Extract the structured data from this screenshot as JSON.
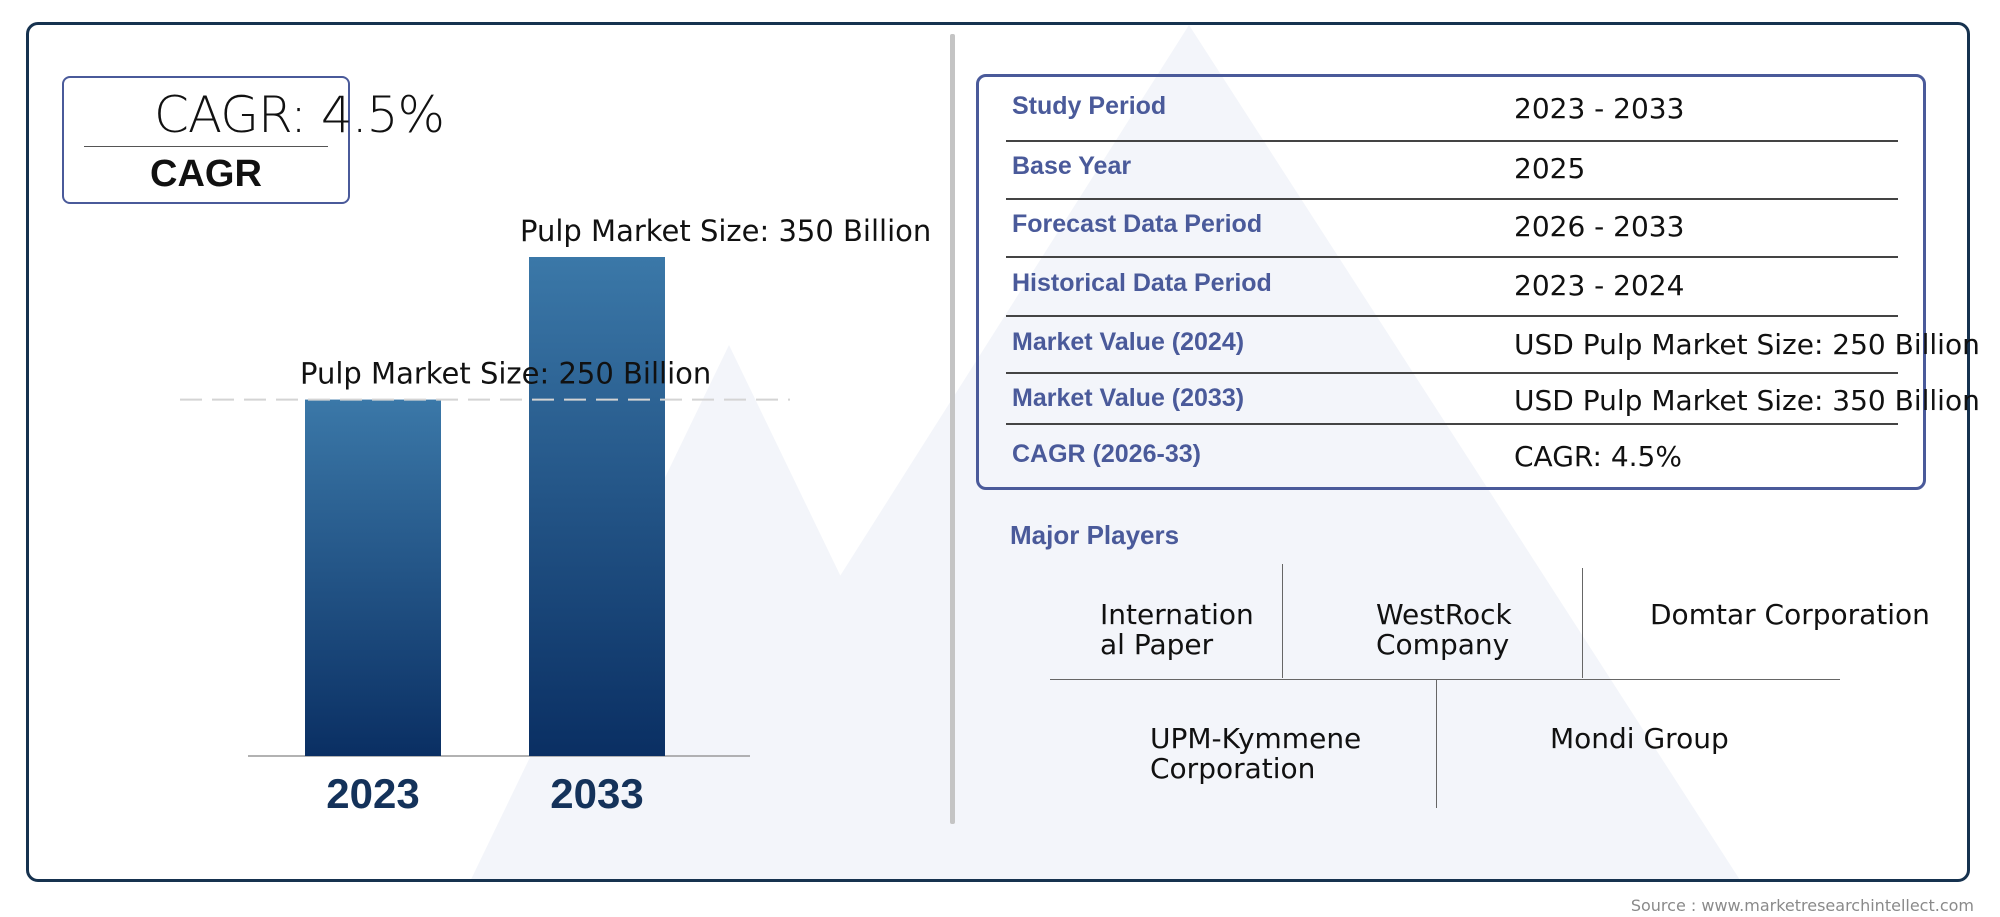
{
  "cagr": {
    "value": "CAGR: 4.5%",
    "label": "CAGR"
  },
  "chart_data": {
    "type": "bar",
    "categories": [
      "2023",
      "2033"
    ],
    "values": [
      250,
      350
    ],
    "data_labels": [
      "Pulp Market Size: 250 Billion",
      "Pulp Market Size: 350 Billion"
    ],
    "unit": "Billion",
    "ylim": [
      0,
      400
    ],
    "colors": {
      "bar_top": "#3b78a8",
      "bar_bottom": "#0a2f63",
      "tick": "#14325a"
    }
  },
  "info": {
    "rows": [
      {
        "key": "Study Period",
        "value": "2023 - 2033"
      },
      {
        "key": "Base Year",
        "value": "2025"
      },
      {
        "key": "Forecast Data Period",
        "value": "2026 - 2033"
      },
      {
        "key": "Historical Data Period",
        "value": "2023 - 2024"
      },
      {
        "key": "Market Value (2024)",
        "value": "USD Pulp Market Size: 250 Billion"
      },
      {
        "key": "Market Value (2033)",
        "value": "USD Pulp Market Size: 350 Billion"
      },
      {
        "key": "CAGR (2026-33)",
        "value": "CAGR: 4.5%"
      }
    ]
  },
  "players": {
    "title": "Major Players",
    "names": [
      [
        "Internation",
        "al Paper"
      ],
      [
        "WestRock",
        "Company"
      ],
      [
        "Domtar Corporation"
      ],
      [
        "UPM-Kymmene",
        "Corporation"
      ],
      [
        "Mondi Group"
      ]
    ]
  },
  "source": "Source : www.marketresearchintellect.com",
  "colors": {
    "accent": "#4a5a9a",
    "frame": "#16324f"
  }
}
